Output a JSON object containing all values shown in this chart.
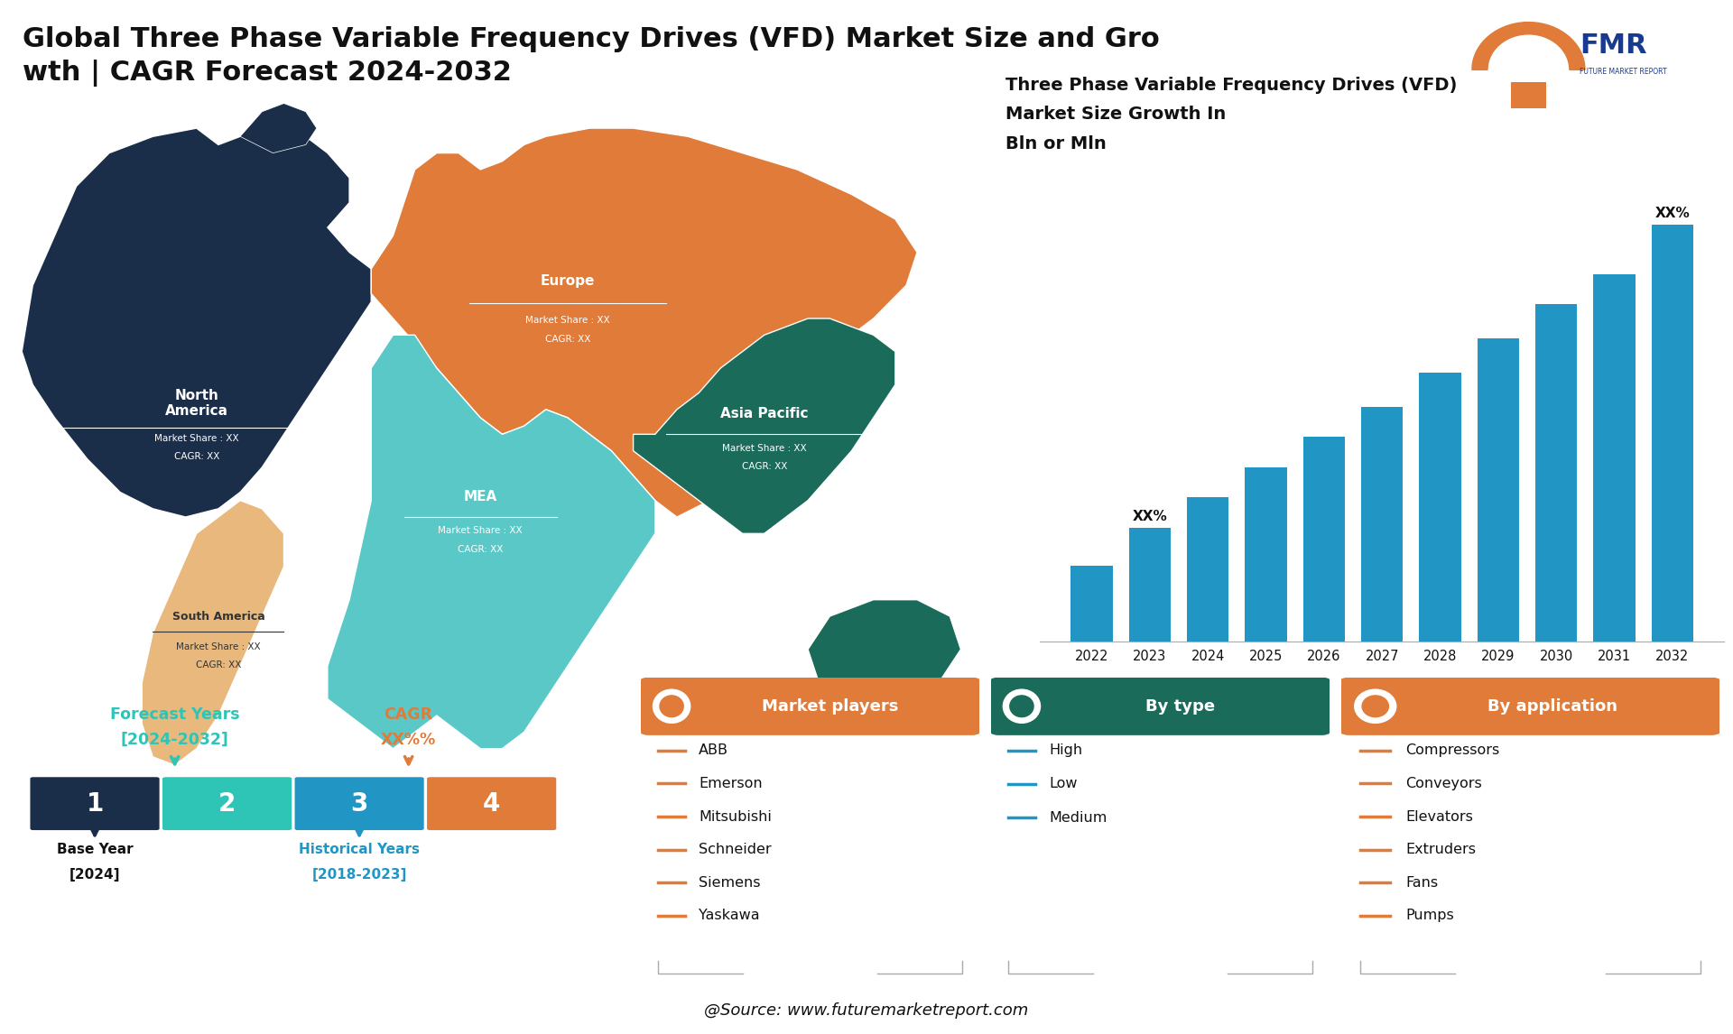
{
  "title_line1": "Global Three Phase Variable Frequency Drives (VFD) Market Size and Gro",
  "title_line2": "wth | CAGR Forecast 2024-2032",
  "title_fontsize": 22,
  "bg_color": "#ffffff",
  "bar_years": [
    "2022",
    "2023",
    "2024",
    "2025",
    "2026",
    "2027",
    "2028",
    "2029",
    "2030",
    "2031",
    "2032"
  ],
  "bar_values": [
    2.0,
    3.0,
    3.8,
    4.6,
    5.4,
    6.2,
    7.1,
    8.0,
    8.9,
    9.7,
    11.0
  ],
  "bar_color": "#2196c4",
  "bar_chart_title": "Three Phase Variable Frequency Drives (VFD)\nMarket Size Growth In\nBln or Mln",
  "bar_xx_label_idx": [
    1,
    10
  ],
  "market_players": [
    "ABB",
    "Emerson",
    "Mitsubishi",
    "Schneider",
    "Siemens",
    "Yaskawa"
  ],
  "by_type": [
    "High",
    "Low",
    "Medium"
  ],
  "by_application": [
    "Compressors",
    "Conveyors",
    "Elevators",
    "Extruders",
    "Fans",
    "Pumps"
  ],
  "pill_mp_color": "#e07b39",
  "pill_bt_color": "#1a6b5a",
  "pill_ba_color": "#e07b39",
  "bullet_mp_color": "#e07b39",
  "bullet_bt_color": "#2196c4",
  "bullet_ba_color": "#e07b39",
  "step_colors": [
    "#1a2e4a",
    "#2ec4b6",
    "#2196c4",
    "#e07b39"
  ],
  "step_labels": [
    "1",
    "2",
    "3",
    "4"
  ],
  "forecast_color": "#2ec4b6",
  "cagr_color": "#e07b39",
  "historical_color": "#2196c4",
  "na_color": "#1a2e4a",
  "sa_color": "#e8b87d",
  "eu_color": "#e07b39",
  "mea_color": "#5bc8c8",
  "ap_color": "#1a6b5a",
  "source_text": "@Source: www.futuremarketreport.com"
}
